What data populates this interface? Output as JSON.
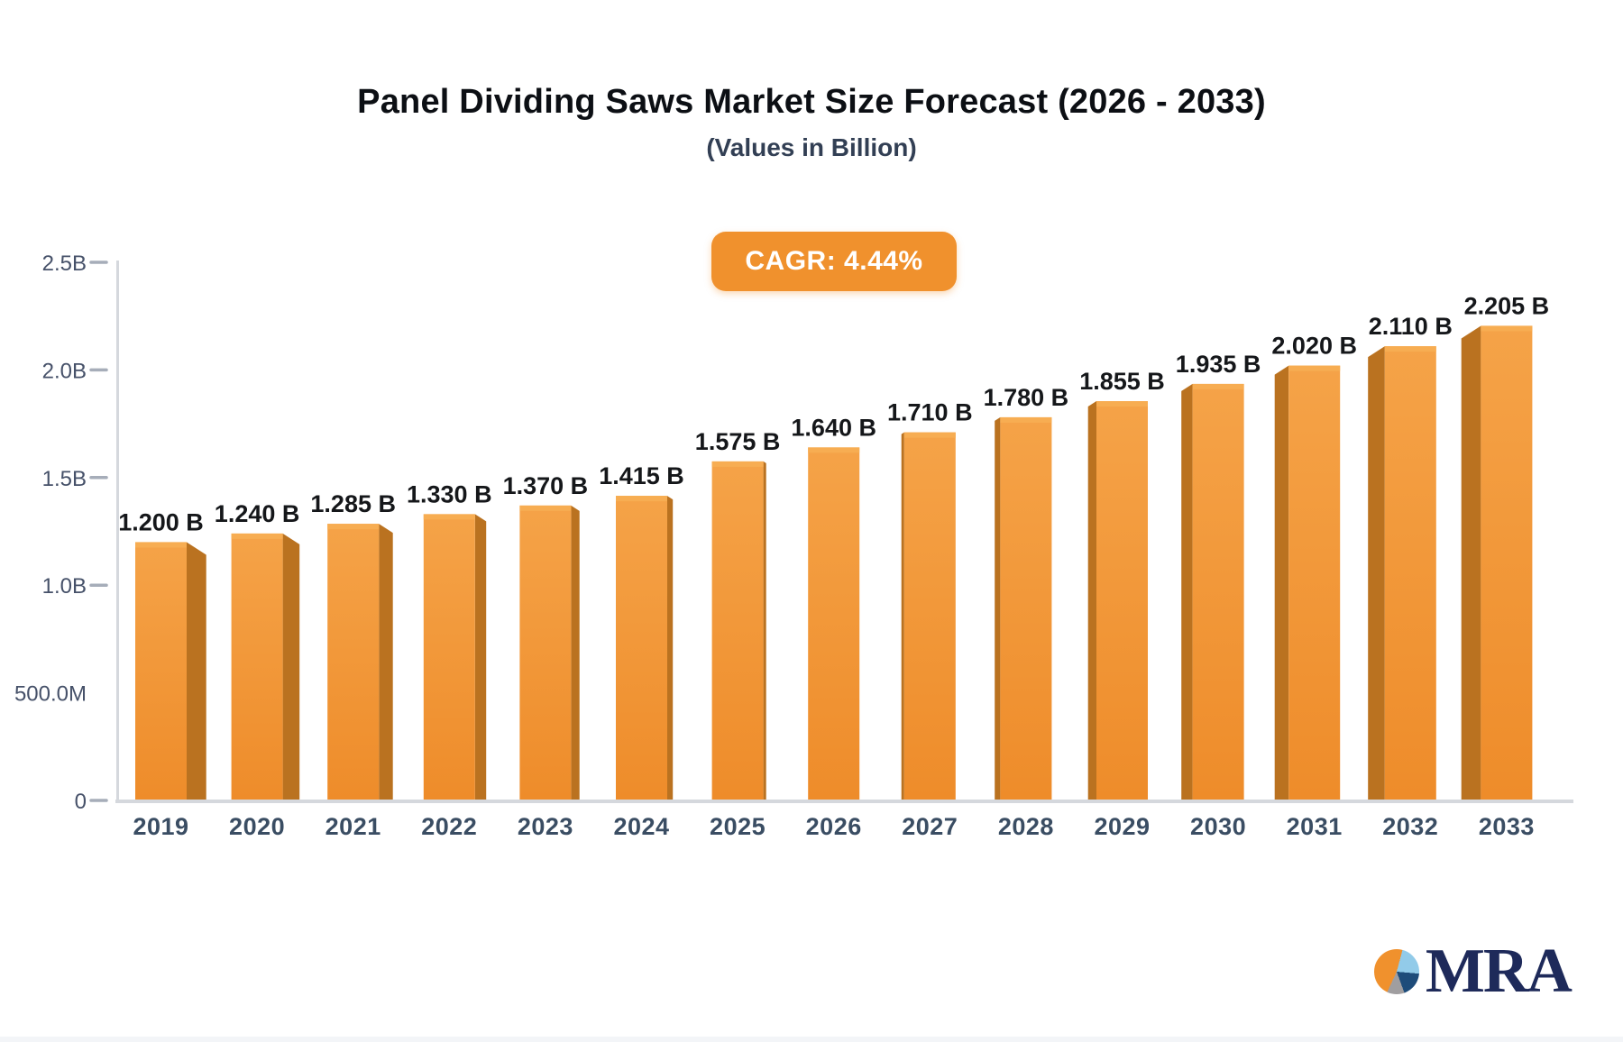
{
  "header": {
    "title": "Panel Dividing Saws Market Size Forecast (2026 - 2033)",
    "subtitle": "(Values in Billion)"
  },
  "badge": {
    "label": "CAGR: 4.44%",
    "bg": "#F0912D",
    "text_color": "#FFFFFF"
  },
  "chart_data": {
    "type": "bar",
    "title": "Panel Dividing Saws Market Size Forecast (2026 - 2033)",
    "subtitle": "(Values in Billion)",
    "cagr_label": "CAGR: 4.44%",
    "categories": [
      "2019",
      "2020",
      "2021",
      "2022",
      "2023",
      "2024",
      "2025",
      "2026",
      "2027",
      "2028",
      "2029",
      "2030",
      "2031",
      "2032",
      "2033"
    ],
    "values": [
      1.2,
      1.24,
      1.285,
      1.33,
      1.37,
      1.415,
      1.575,
      1.64,
      1.71,
      1.78,
      1.855,
      1.935,
      2.02,
      2.11,
      2.205
    ],
    "value_labels": [
      "1.200 B",
      "1.240 B",
      "1.285 B",
      "1.330 B",
      "1.370 B",
      "1.415 B",
      "1.575 B",
      "1.640 B",
      "1.710 B",
      "1.780 B",
      "1.855 B",
      "1.935 B",
      "2.020 B",
      "2.110 B",
      "2.205 B"
    ],
    "xlabel": "",
    "ylabel": "",
    "ylim": [
      0,
      2.5
    ],
    "yticks": [
      {
        "label": "2.5B",
        "value": 2.5,
        "tick": true
      },
      {
        "label": "2.0B",
        "value": 2.0,
        "tick": true
      },
      {
        "label": "1.5B",
        "value": 1.5,
        "tick": true
      },
      {
        "label": "1.0B",
        "value": 1.0,
        "tick": true
      },
      {
        "label": "500.0M",
        "value": 0.5,
        "tick": false
      },
      {
        "label": "0",
        "value": 0.0,
        "tick": true
      }
    ],
    "grid": false,
    "legend": false,
    "bar_style": "3d-perspective",
    "colors": {
      "bar_face_top": "#F5A348",
      "bar_face_bottom": "#EE8C2A",
      "bar_side": "#BA7220",
      "bar_top": "#F7AD52",
      "axis": "#D5D8DD",
      "tick": "#A6ADB9",
      "value_label": "#15171A",
      "x_label": "#3A4D63",
      "y_label": "#465169"
    }
  },
  "logo": {
    "text": "MRA",
    "text_color": "#1E2A5A",
    "pie_colors": {
      "orange": "#F0912D",
      "light_blue": "#92CBE9",
      "navy": "#1E4C7A",
      "gray": "#A09EA0"
    }
  }
}
